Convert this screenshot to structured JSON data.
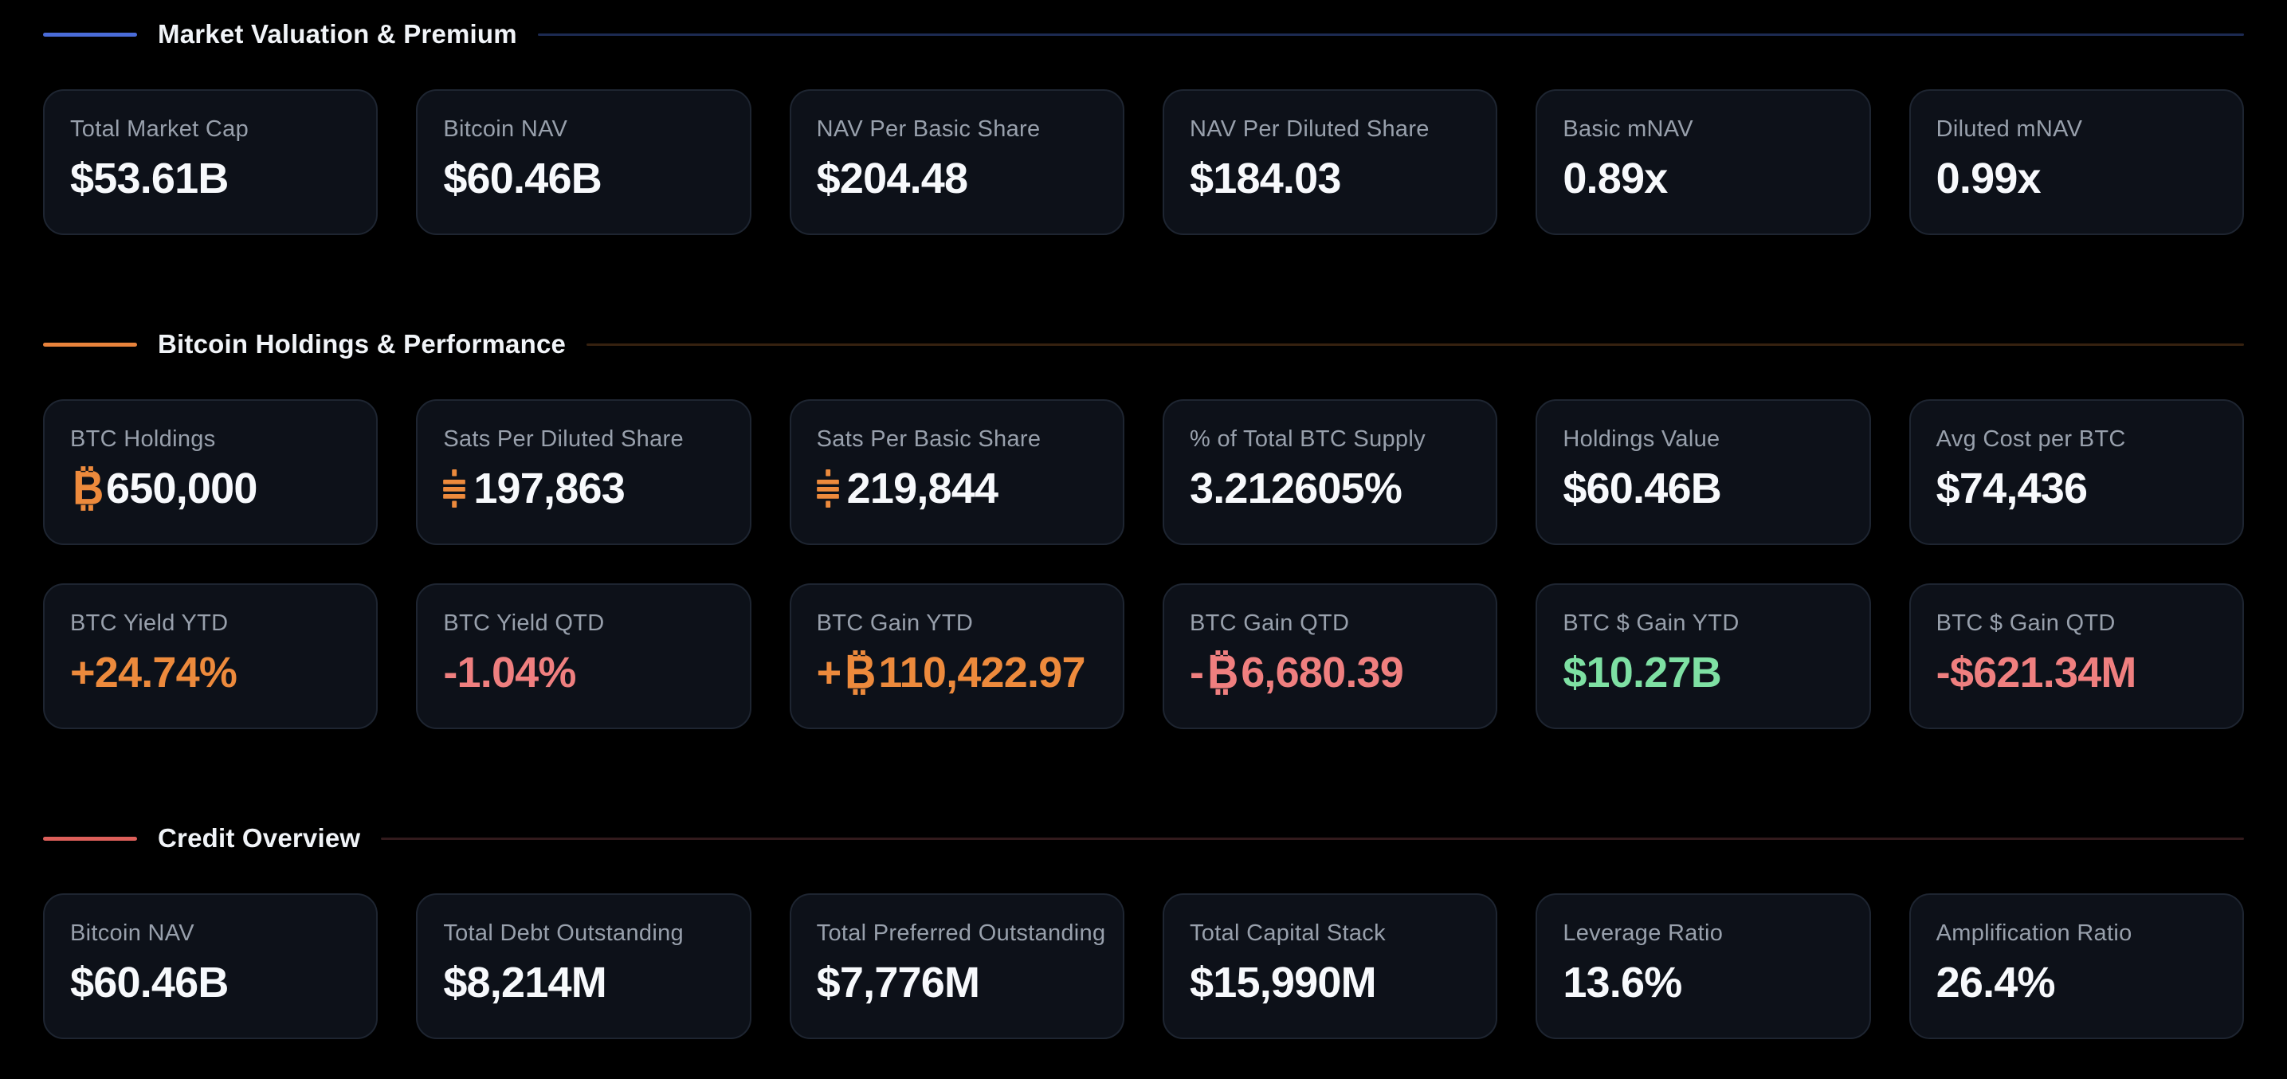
{
  "colors": {
    "background": "#000000",
    "card_background": "#0D1119",
    "card_border": "#1E2531",
    "label_text": "#98A0AC",
    "value_text": "#F7F9FC",
    "orange": "#ED8A3C",
    "red": "#EF7F7F",
    "green": "#7EE0A3"
  },
  "sections": [
    {
      "id": "market-valuation",
      "title": "Market Valuation & Premium",
      "accent_color": "#4A6CD9",
      "rule_color": "#1C2A52",
      "rows": [
        [
          {
            "label": "Total Market Cap",
            "value": "$53.61B"
          },
          {
            "label": "Bitcoin NAV",
            "value": "$60.46B"
          },
          {
            "label": "NAV Per Basic Share",
            "value": "$204.48"
          },
          {
            "label": "NAV Per Diluted Share",
            "value": "$184.03"
          },
          {
            "label": "Basic mNAV",
            "value": "0.89x"
          },
          {
            "label": "Diluted mNAV",
            "value": "0.99x"
          }
        ]
      ]
    },
    {
      "id": "bitcoin-holdings",
      "title": "Bitcoin Holdings & Performance",
      "accent_color": "#E8833C",
      "rule_color": "#36210F",
      "rows": [
        [
          {
            "label": "BTC Holdings",
            "icon": "btc",
            "icon_color": "#ED8A3C",
            "value": "650,000"
          },
          {
            "label": "Sats Per Diluted Share",
            "icon": "sats",
            "icon_color": "#ED8A3C",
            "value": "197,863"
          },
          {
            "label": "Sats Per Basic Share",
            "icon": "sats",
            "icon_color": "#ED8A3C",
            "value": "219,844"
          },
          {
            "label": "% of Total BTC Supply",
            "value": "3.212605%"
          },
          {
            "label": "Holdings Value",
            "value": "$60.46B"
          },
          {
            "label": "Avg Cost per BTC",
            "value": "$74,436"
          }
        ],
        [
          {
            "label": "BTC Yield YTD",
            "value": "+24.74%",
            "value_color": "#ED8A3C"
          },
          {
            "label": "BTC Yield QTD",
            "value": "-1.04%",
            "value_color": "#EF7F7F"
          },
          {
            "label": "BTC Gain YTD",
            "pre": "+",
            "icon": "btc",
            "value": "110,422.97",
            "value_color": "#ED8A3C"
          },
          {
            "label": "BTC Gain QTD",
            "pre": "-",
            "icon": "btc",
            "value": "6,680.39",
            "value_color": "#EF7F7F"
          },
          {
            "label": "BTC $ Gain YTD",
            "value": "$10.27B",
            "value_color": "#7EE0A3"
          },
          {
            "label": "BTC $ Gain QTD",
            "value": "-$621.34M",
            "value_color": "#EF7F7F"
          }
        ]
      ]
    },
    {
      "id": "credit-overview",
      "title": "Credit Overview",
      "accent_color": "#DD5F5A",
      "rule_color": "#321A1C",
      "rows": [
        [
          {
            "label": "Bitcoin NAV",
            "value": "$60.46B"
          },
          {
            "label": "Total Debt Outstanding",
            "value": "$8,214M"
          },
          {
            "label": "Total Preferred Outstanding",
            "value": "$7,776M"
          },
          {
            "label": "Total Capital Stack",
            "value": "$15,990M"
          },
          {
            "label": "Leverage Ratio",
            "value": "13.6%"
          },
          {
            "label": "Amplification Ratio",
            "value": "26.4%"
          }
        ]
      ]
    }
  ],
  "icons": {
    "btc": "bitcoin-icon",
    "sats": "satoshi-icon"
  }
}
